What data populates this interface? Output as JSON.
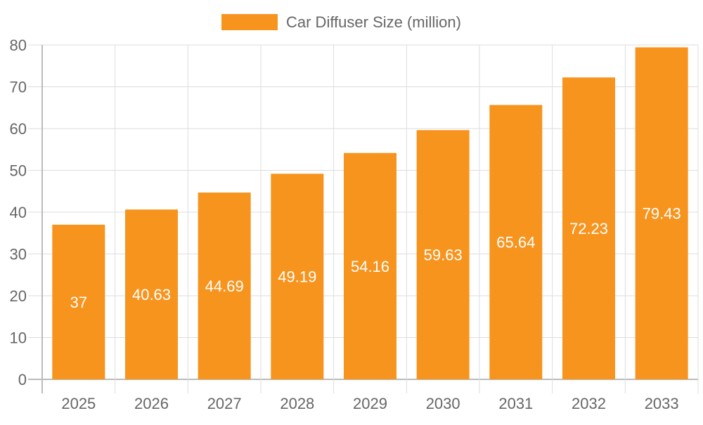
{
  "chart_data": {
    "type": "bar",
    "title": "",
    "xlabel": "",
    "ylabel": "",
    "categories": [
      "2025",
      "2026",
      "2027",
      "2028",
      "2029",
      "2030",
      "2031",
      "2032",
      "2033"
    ],
    "series": [
      {
        "name": "Car Diffuser Size (million)",
        "values": [
          37,
          40.63,
          44.69,
          49.19,
          54.16,
          59.63,
          65.64,
          72.23,
          79.43
        ],
        "color": "#F7941E"
      }
    ],
    "ylim": [
      0,
      80
    ],
    "yticks": [
      0,
      10,
      20,
      30,
      40,
      50,
      60,
      70,
      80
    ],
    "grid": true,
    "legend": "top-center",
    "data_labels": [
      "37",
      "40.63",
      "44.69",
      "49.19",
      "54.16",
      "59.63",
      "65.64",
      "72.23",
      "79.43"
    ]
  }
}
